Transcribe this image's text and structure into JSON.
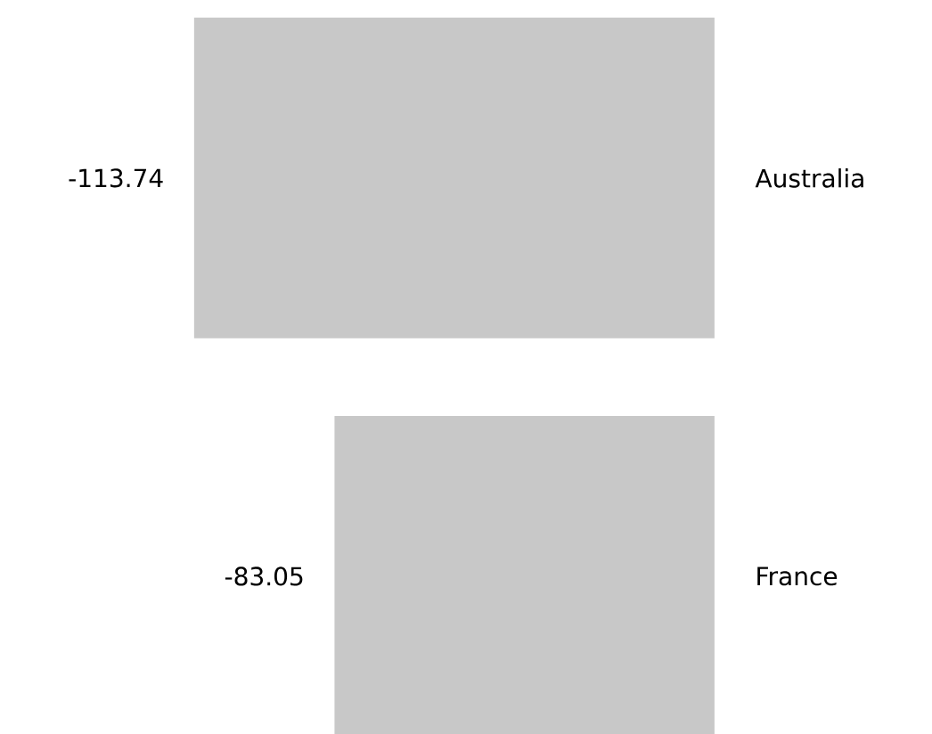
{
  "chart_data": {
    "type": "bar",
    "orientation": "horizontal",
    "categories": [
      "Australia",
      "France"
    ],
    "values": [
      -113.74,
      -83.05
    ],
    "color": "#c8c8c8",
    "data_labels": true
  }
}
